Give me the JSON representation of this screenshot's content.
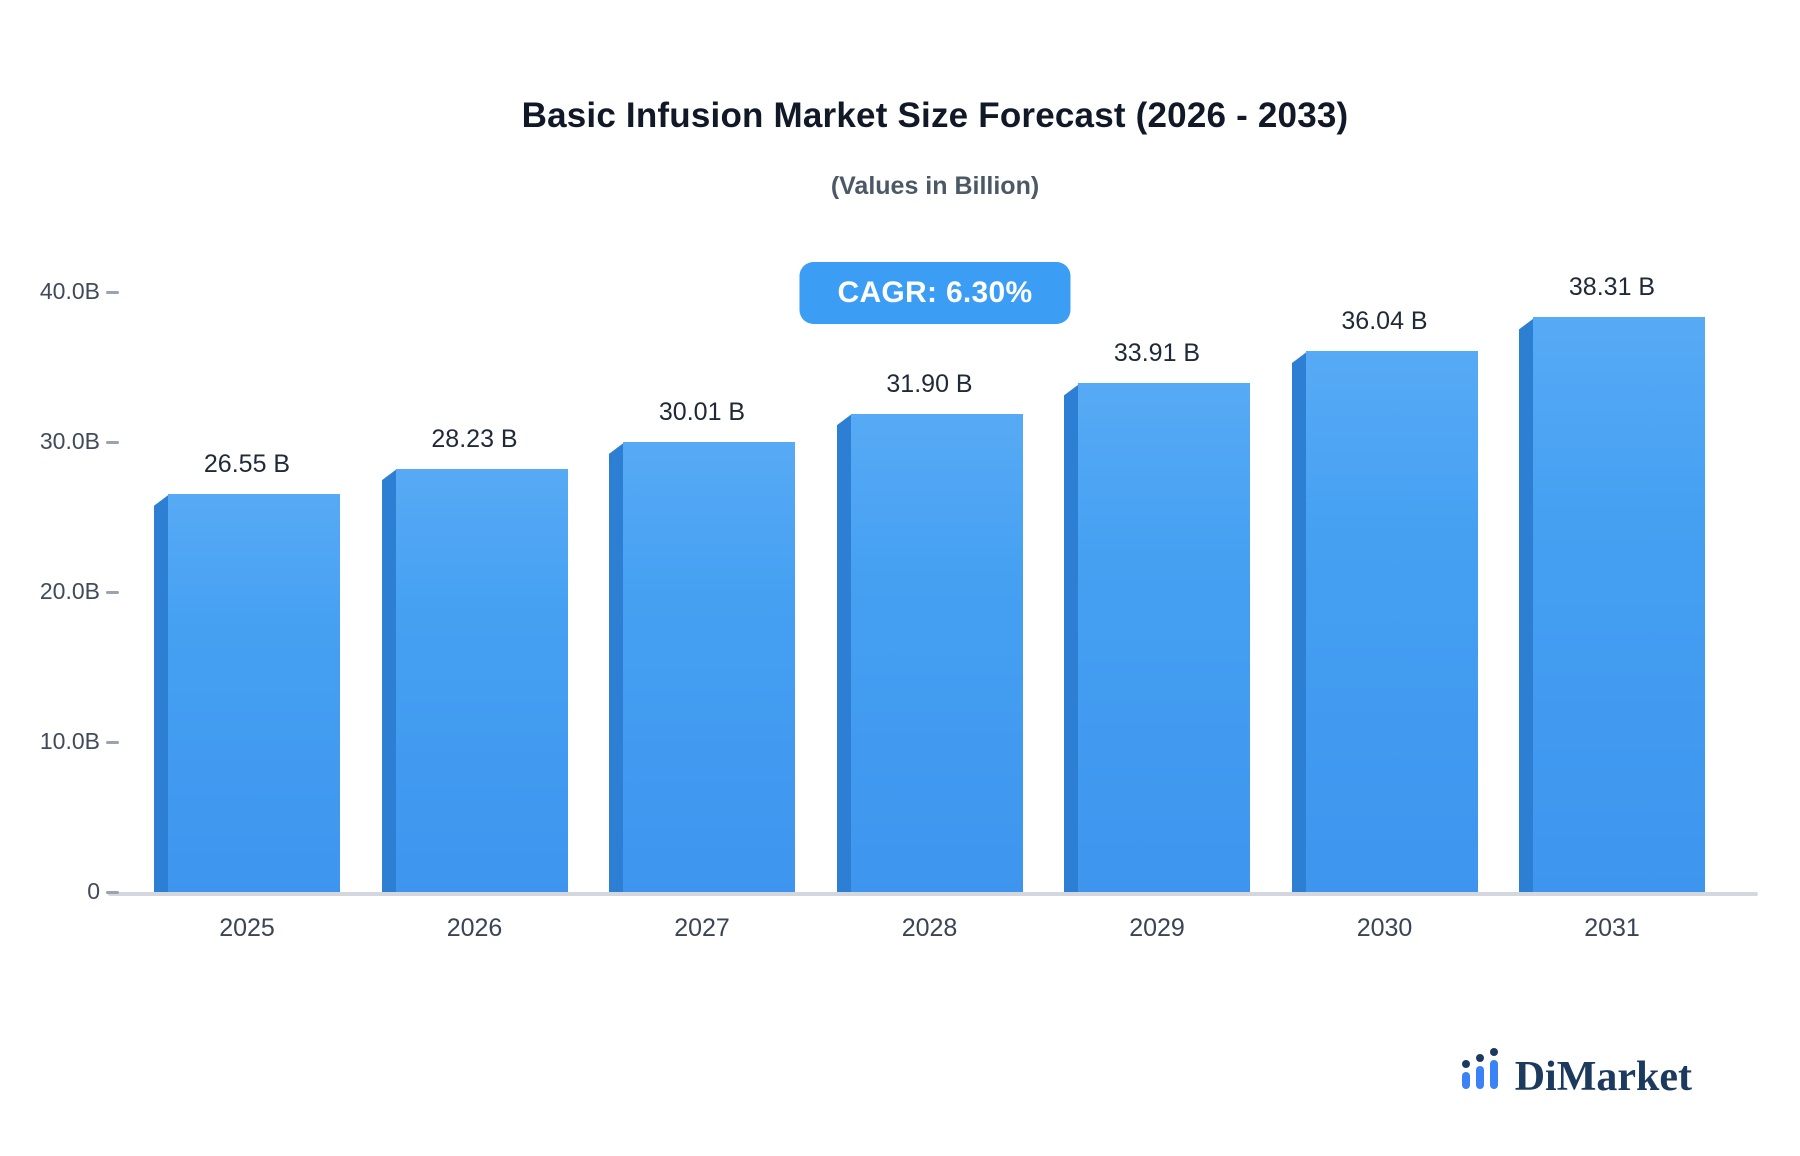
{
  "header": {
    "title": "Basic Infusion Market Size Forecast (2026 - 2033)",
    "subtitle": "(Values in Billion)",
    "cagr_badge": "CAGR: 6.30%"
  },
  "chart_data": {
    "type": "bar",
    "title": "Basic Infusion Market Size Forecast (2026 - 2033)",
    "subtitle": "(Values in Billion)",
    "cagr": "CAGR: 6.30%",
    "categories": [
      "2025",
      "2026",
      "2027",
      "2028",
      "2029",
      "2030",
      "2031"
    ],
    "values": [
      26.55,
      28.23,
      30.01,
      31.9,
      33.91,
      36.04,
      38.31
    ],
    "value_labels": [
      "26.55 B",
      "28.23 B",
      "30.01 B",
      "31.90 B",
      "33.91 B",
      "36.04 B",
      "38.31 B"
    ],
    "xlabel": "",
    "ylabel": "",
    "ylim": [
      0,
      40
    ],
    "y_ticks": [
      0,
      10,
      20,
      30,
      40
    ],
    "y_tick_labels": [
      "0",
      "10.0B",
      "20.0B",
      "30.0B",
      "40.0B"
    ],
    "grid": false,
    "legend_position": "none",
    "bar_color_top": "#57aaf5",
    "bar_color_bottom": "#3e95ee",
    "bar_side_color": "#2d7fd3"
  },
  "branding": {
    "logo_text": "DiMarket"
  },
  "colors": {
    "badge_bg": "#3b9df3",
    "badge_text": "#ffffff",
    "title_text": "#111827"
  }
}
